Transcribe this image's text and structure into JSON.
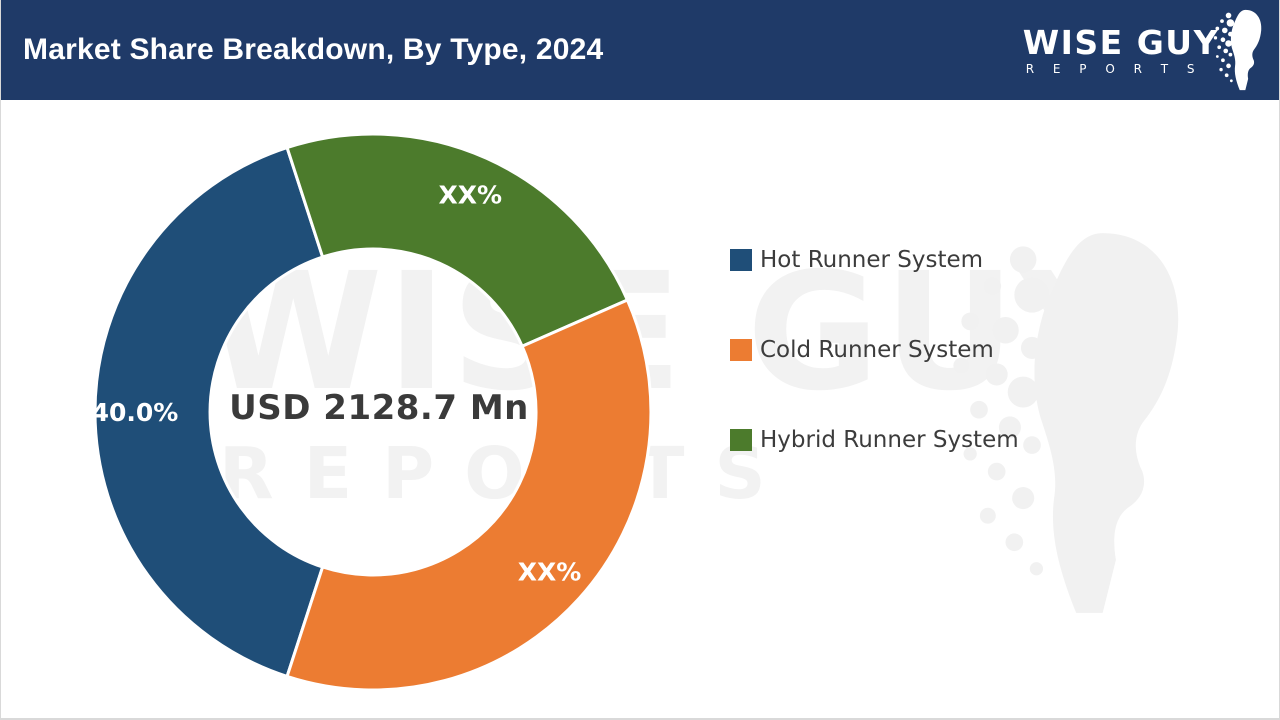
{
  "header": {
    "title": "Market Share Breakdown, By Type, 2024",
    "logo": {
      "name": "WISE GUY",
      "subtitle": "R E P O R T S"
    }
  },
  "chart_data": {
    "type": "pie",
    "subtype": "donut",
    "title": "Market Share Breakdown, By Type, 2024",
    "center_label": "USD 2128.7 Mn",
    "legend_position": "right",
    "start_angle_deg": 198,
    "segments": [
      {
        "name": "Hot Runner System",
        "display_label": "40.0%",
        "share_pct": 40.0,
        "color": "#1F4E78"
      },
      {
        "name": "Hybrid Runner System",
        "display_label": "XX%",
        "share_pct": 23.4,
        "color": "#4C7B2C"
      },
      {
        "name": "Cold Runner System",
        "display_label": "XX%",
        "share_pct": 36.6,
        "color": "#EC7C32"
      }
    ]
  },
  "legend": {
    "items": [
      {
        "label": "Hot Runner System",
        "color": "#1F4E78"
      },
      {
        "label": "Cold Runner System",
        "color": "#EC7C32"
      },
      {
        "label": "Hybrid Runner System",
        "color": "#4C7B2C"
      }
    ]
  },
  "watermark": {
    "line1": "WISE GUY",
    "line2": "REPORTS"
  },
  "colors": {
    "header_bg": "#1F3A68",
    "page_border": "#D9D9D9",
    "center_text": "#3A3A3A",
    "legend_text": "#3C3C3C",
    "watermark": "#F2F2F2"
  }
}
